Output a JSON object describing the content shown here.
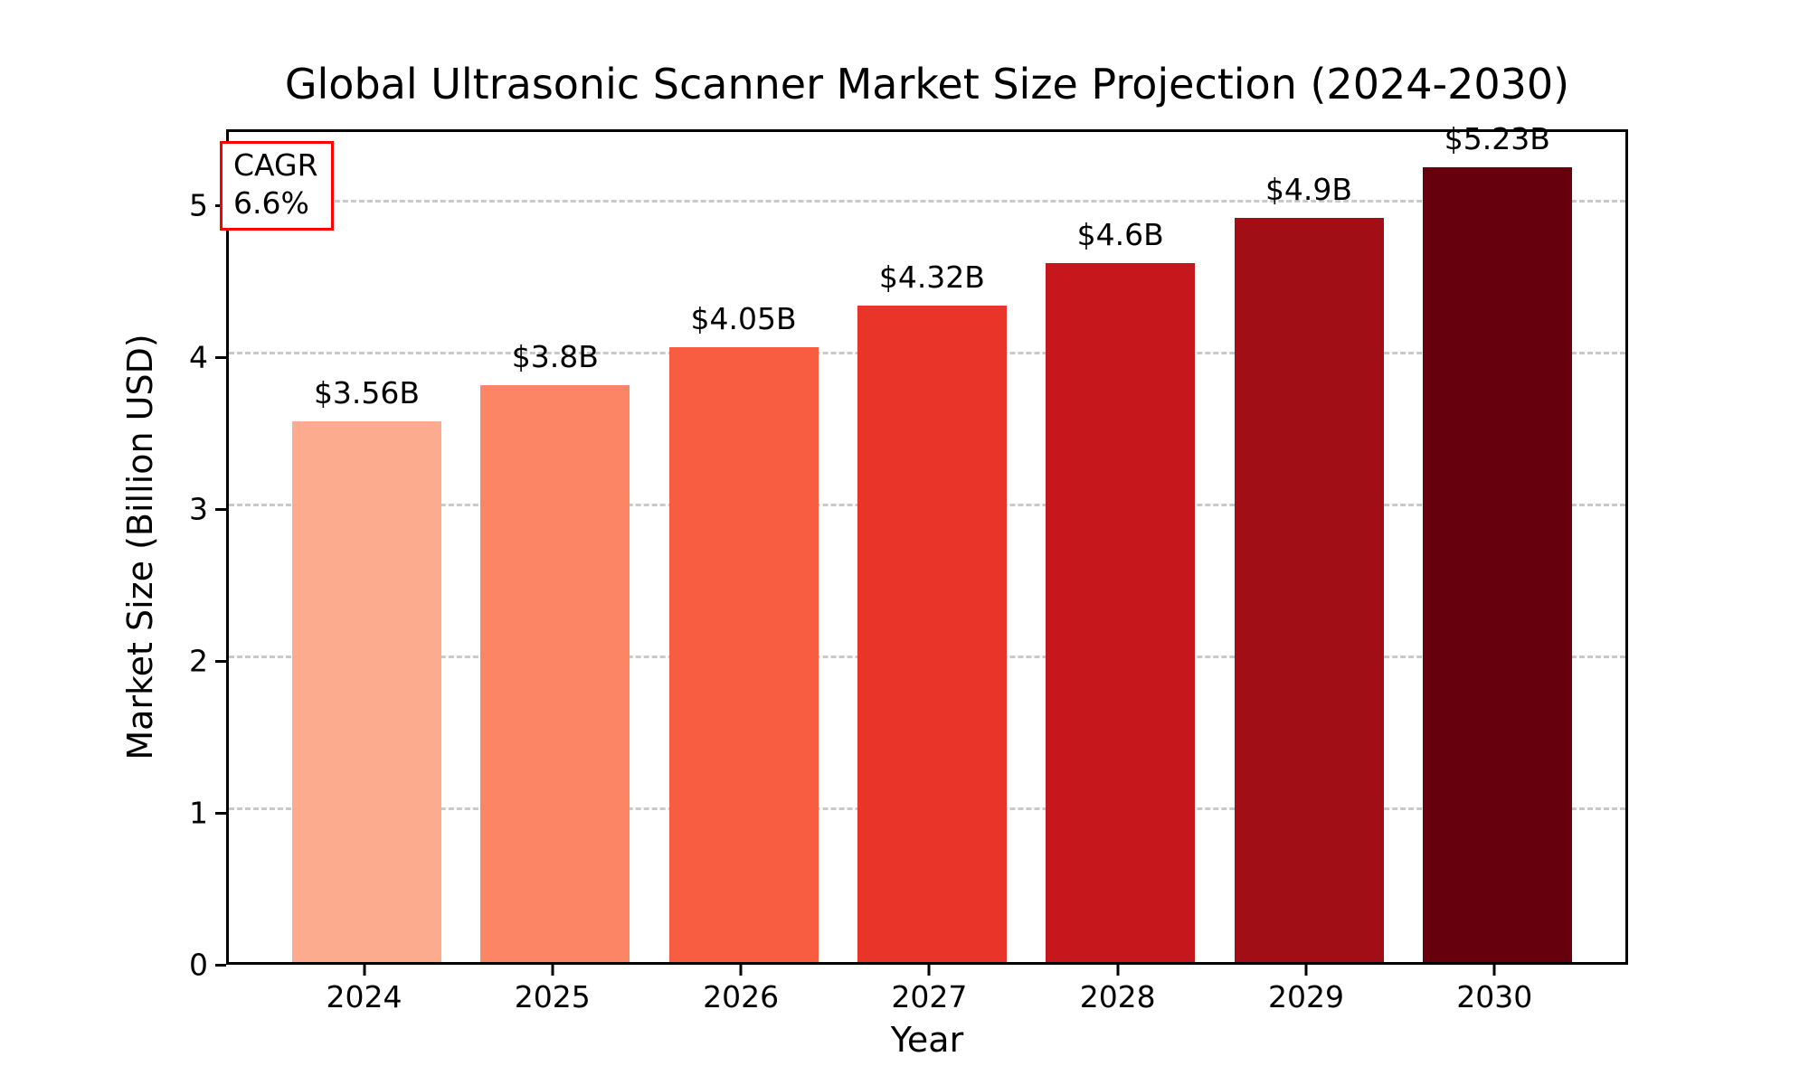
{
  "figure": {
    "title": "Global Ultrasonic Scanner Market Size Projection (2024-2030)"
  },
  "chart_data": {
    "type": "bar",
    "title": "Global Ultrasonic Scanner Market Size Projection (2024-2030)",
    "xlabel": "Year",
    "ylabel": "Market Size (Billion USD)",
    "categories": [
      "2024",
      "2025",
      "2026",
      "2027",
      "2028",
      "2029",
      "2030"
    ],
    "values": [
      3.56,
      3.8,
      4.05,
      4.32,
      4.6,
      4.9,
      5.23
    ],
    "bar_labels": [
      "$3.56B",
      "$3.8B",
      "$4.05B",
      "$4.32B",
      "$4.6B",
      "$4.9B",
      "$5.23B"
    ],
    "bar_colors": [
      "#FCAB8E",
      "#FB8565",
      "#F85D42",
      "#E83429",
      "#C6171C",
      "#A10E15",
      "#67000D"
    ],
    "yticks": [
      0,
      1,
      2,
      3,
      4,
      5
    ],
    "ylim": [
      0,
      5.5
    ],
    "grid": "horizontal-dashed-at-integer-yticks",
    "grid_color": "#c9c9c9",
    "legend": "none",
    "annotation": {
      "line1": "CAGR",
      "line2": "6.6%",
      "border_color": "#ff0000",
      "position": "top-left"
    }
  }
}
